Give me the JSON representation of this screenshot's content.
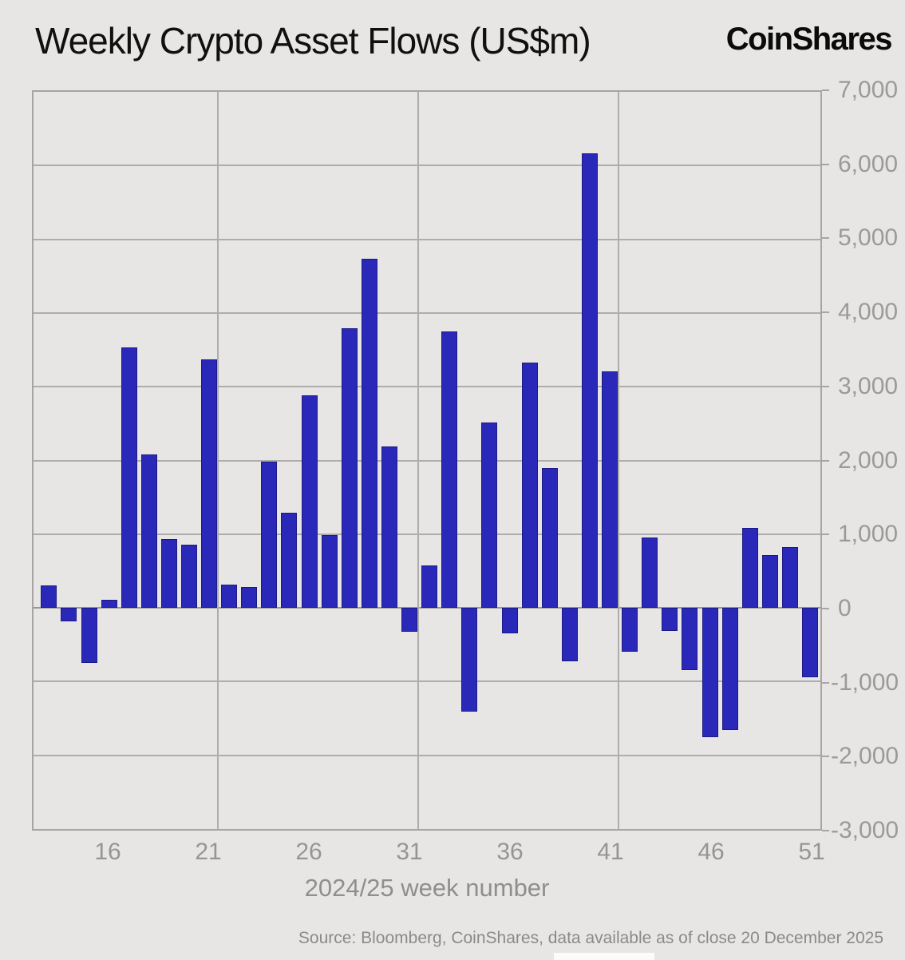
{
  "header": {
    "title": "Weekly Crypto Asset Flows (US$m)",
    "brand": "CoinShares"
  },
  "chart_data": {
    "type": "bar",
    "title": "Weekly Crypto Asset Flows (US$m)",
    "xlabel": "2024/25 week number",
    "ylabel": "",
    "x": [
      13,
      14,
      15,
      16,
      17,
      18,
      19,
      20,
      21,
      22,
      23,
      24,
      25,
      26,
      27,
      28,
      29,
      30,
      31,
      32,
      33,
      34,
      35,
      36,
      37,
      38,
      39,
      40,
      41,
      42,
      43,
      44,
      45,
      46,
      47,
      48,
      49,
      50,
      51
    ],
    "values": [
      300,
      -180,
      -750,
      110,
      3530,
      2080,
      930,
      860,
      3370,
      320,
      280,
      1980,
      1290,
      2880,
      990,
      3790,
      4740,
      2190,
      -320,
      570,
      3750,
      -1410,
      2520,
      -350,
      3330,
      1900,
      -720,
      6170,
      3210,
      -600,
      950,
      -310,
      -840,
      -1750,
      -1660,
      1080,
      720,
      820,
      -940
    ],
    "xticks": [
      16,
      21,
      26,
      31,
      36,
      41,
      46,
      51
    ],
    "ylim": [
      -3000,
      7000
    ],
    "ytick_step": 1000,
    "yticklabels": [
      "7,000",
      "6,000",
      "5,000",
      "4,000",
      "3,000",
      "2,000",
      "1,000",
      "0",
      "-1,000",
      "-2,000",
      "-3,000"
    ],
    "grid": true,
    "legend": "none",
    "bar_color": "#2a28b8"
  },
  "footer": {
    "source": "Source: Bloomberg, CoinShares, data available as of close 20 December 2025"
  }
}
